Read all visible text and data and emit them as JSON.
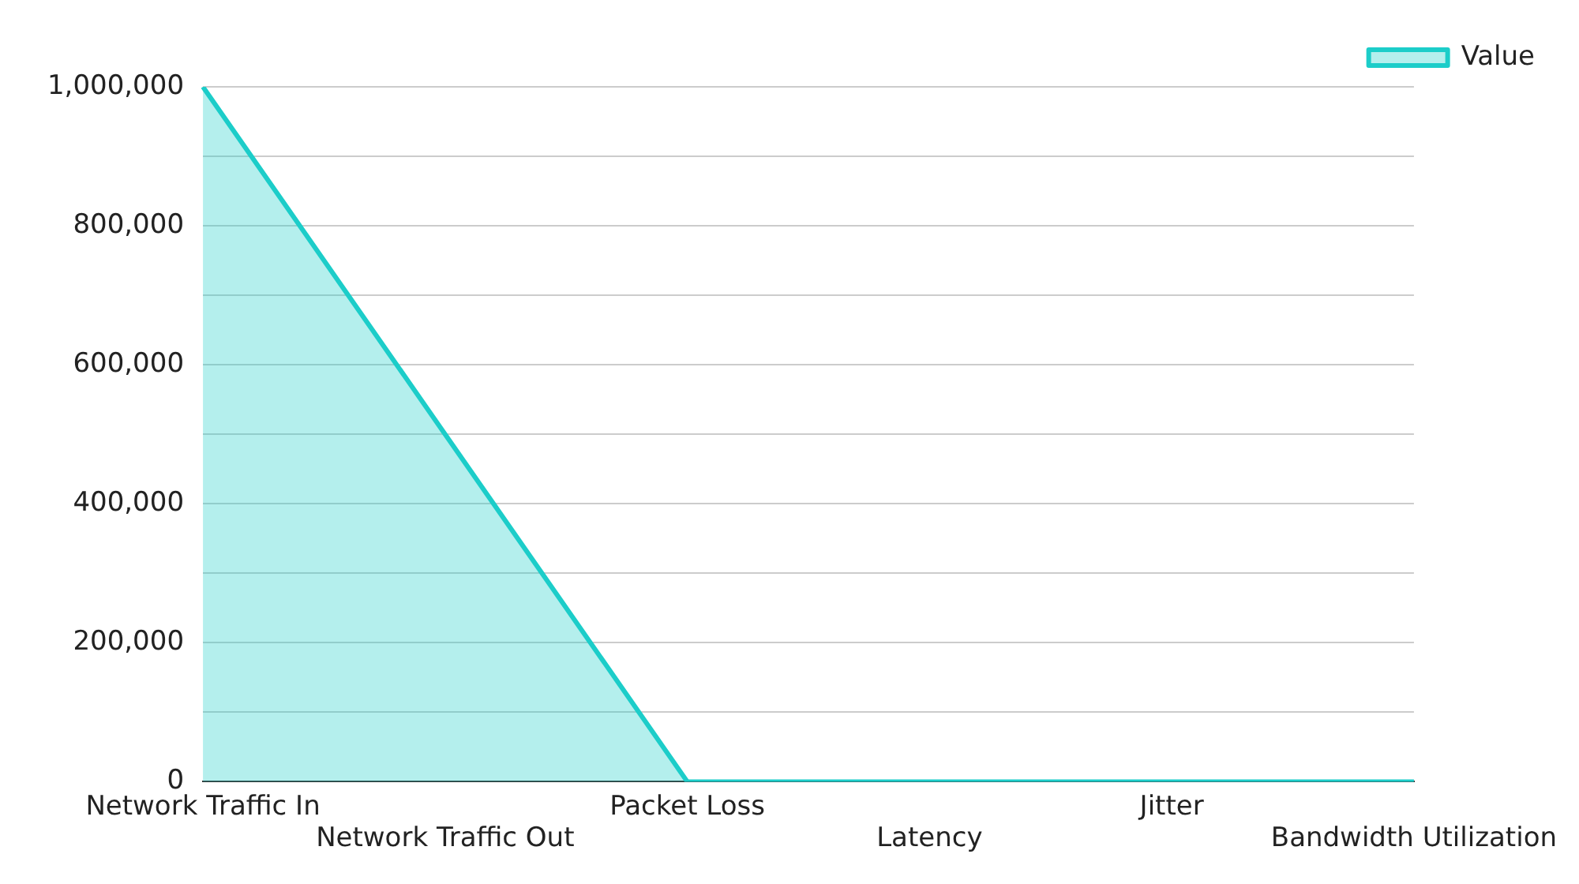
{
  "chart_data": {
    "type": "area",
    "categories": [
      "Network Traffic In",
      "Network Traffic Out",
      "Packet Loss",
      "Latency",
      "Jitter",
      "Bandwidth Utilization"
    ],
    "series": [
      {
        "name": "Value",
        "color": "#1ccdc9",
        "values": [
          1000000,
          500000,
          0,
          0,
          0,
          0
        ]
      }
    ],
    "ylim": [
      0,
      1000000
    ],
    "yticks": [
      0,
      {
        "value": 100000,
        "label": null
      },
      {
        "value": 200000,
        "label": "200,000"
      },
      {
        "value": 300000,
        "label": null
      },
      {
        "value": 400000,
        "label": "400,000"
      },
      {
        "value": 500000,
        "label": null
      },
      {
        "value": 600000,
        "label": "600,000"
      },
      {
        "value": 700000,
        "label": null
      },
      {
        "value": 800000,
        "label": "800,000"
      },
      {
        "value": 900000,
        "label": null
      },
      {
        "value": 1000000,
        "label": "1,000,000"
      }
    ],
    "grid": "y",
    "legend": "top right"
  }
}
